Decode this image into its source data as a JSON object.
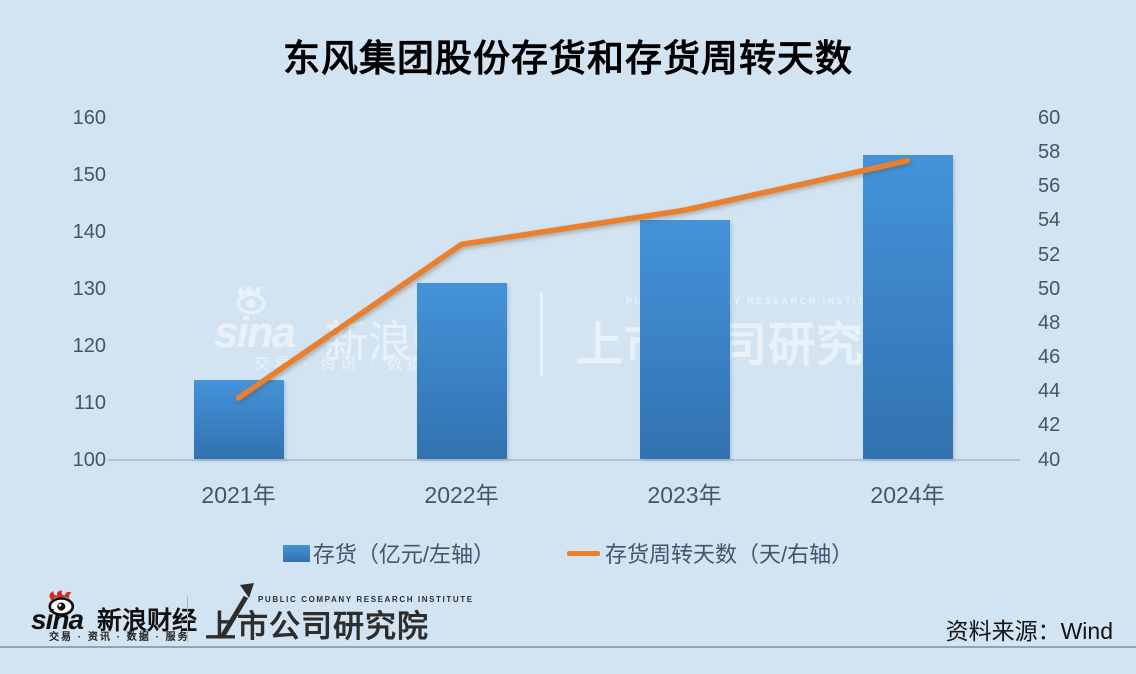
{
  "title": "东风集团股份存货和存货周转天数",
  "chart_data": {
    "type": "bar",
    "subtype": "combo-bar-line-dual-axis",
    "categories": [
      "2021年",
      "2022年",
      "2023年",
      "2024年"
    ],
    "series": [
      {
        "name": "存货（亿元/左轴）",
        "type": "bar",
        "axis": "left",
        "values": [
          114,
          131,
          142,
          153.5
        ]
      },
      {
        "name": "存货周转天数（天/右轴）",
        "type": "line",
        "axis": "right",
        "values": [
          43.6,
          52.6,
          54.6,
          57.5
        ]
      }
    ],
    "left_axis": {
      "min": 100,
      "max": 160,
      "step": 10,
      "ticks": [
        160,
        150,
        140,
        130,
        120,
        110,
        100
      ]
    },
    "right_axis": {
      "min": 40,
      "max": 60,
      "step": 2,
      "ticks": [
        60,
        58,
        56,
        54,
        52,
        50,
        48,
        46,
        44,
        42,
        40
      ]
    },
    "grid": false,
    "legend_position": "bottom"
  },
  "legend": {
    "items": [
      {
        "label": "存货（亿元/左轴）",
        "marker": "square"
      },
      {
        "label": "存货周转天数（天/右轴）",
        "marker": "line"
      }
    ]
  },
  "watermark": {
    "sina_latin": "sina",
    "sina_cn": "新浪财经",
    "tagline": "交易 · 资讯 · 数据 · 服务",
    "institute_en": "PUBLIC COMPANY RESEARCH INSTITUTE",
    "institute": "上市公司研究院"
  },
  "footer": {
    "sina_latin": "sina",
    "sina_cn": "新浪财经",
    "tagline": "交易 · 资讯 · 数据 · 服务",
    "institute_en": "PUBLIC COMPANY RESEARCH INSTITUTE",
    "institute": "上市公司研究院",
    "source": "资料来源：Wind"
  },
  "colors": {
    "background": "#d2e4f2",
    "bar_top": "#4493da",
    "bar_bottom": "#3272b0",
    "line": "#e8802f",
    "axis_text": "#44546a",
    "title_text": "#000000",
    "footer_text": "#2d2d2d",
    "rule": "#98a2ab"
  }
}
